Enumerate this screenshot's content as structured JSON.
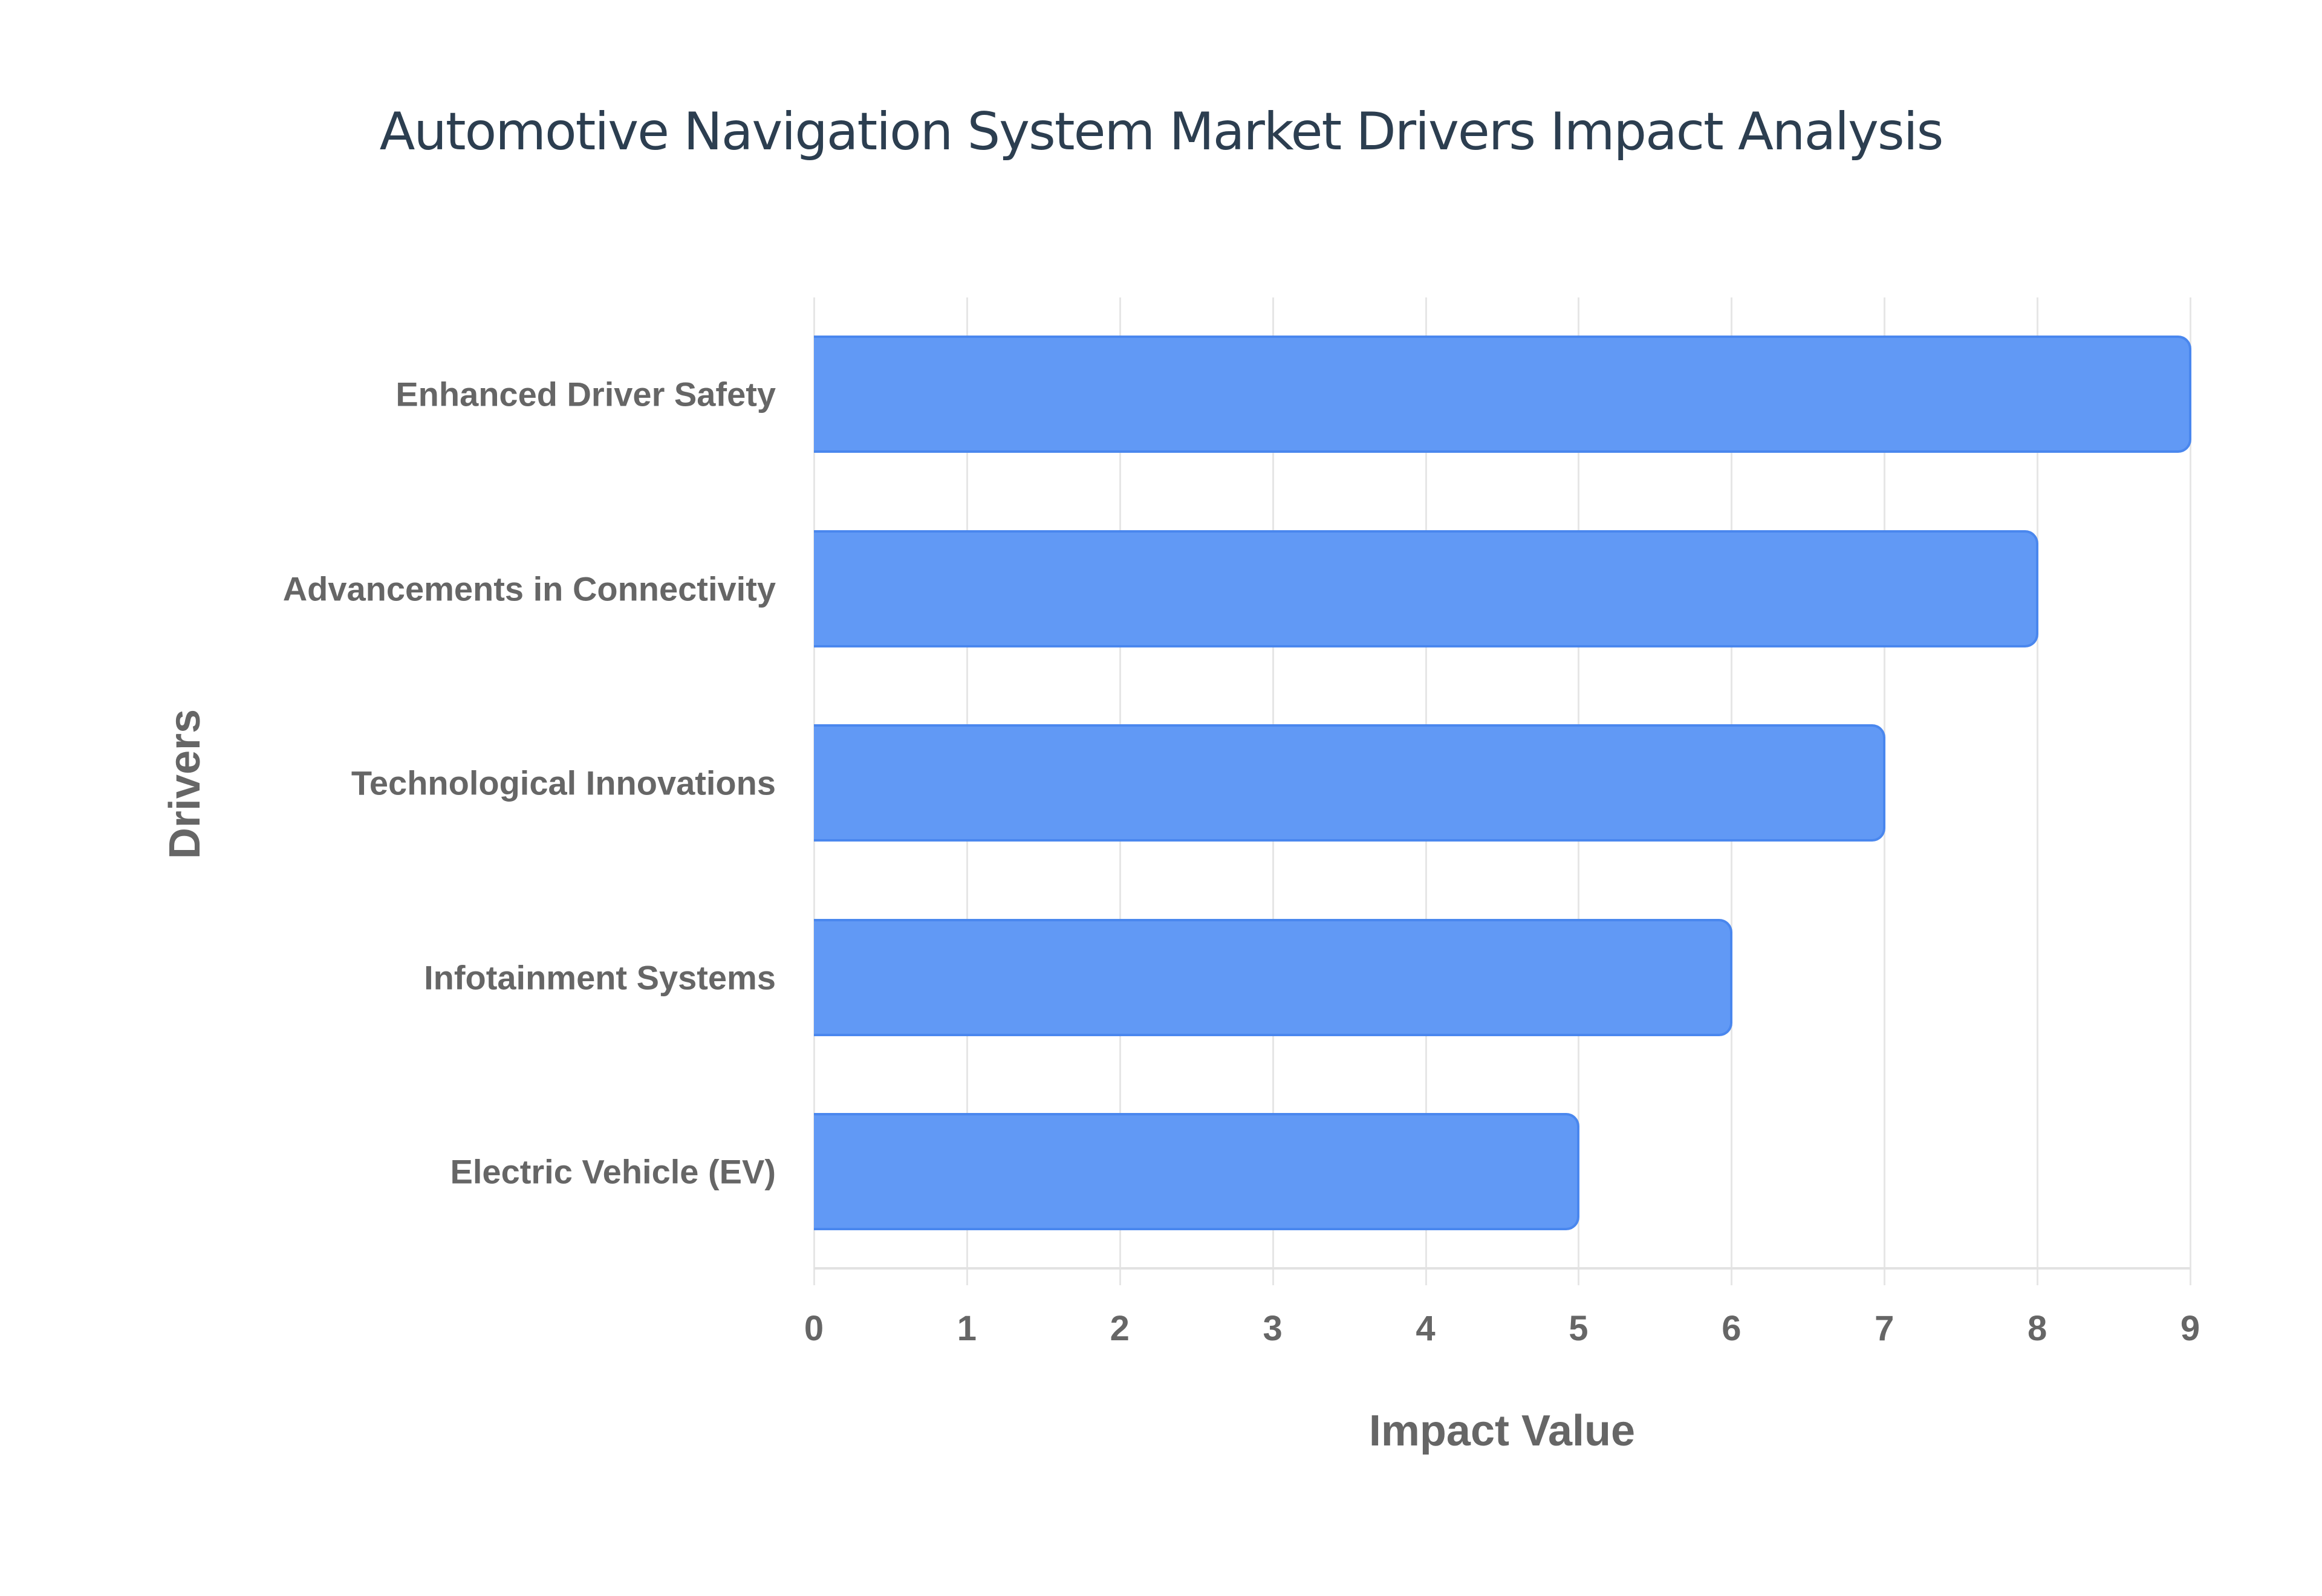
{
  "title": "Automotive Navigation System Market Drivers Impact Analysis",
  "colors": {
    "bar_fill": "#6199f5",
    "bar_border": "#4a87ee",
    "title": "#2c3e50",
    "labels": "#666666",
    "grid": "#e6e6e6"
  },
  "axes": {
    "x_title": "Impact Value",
    "y_title": "Drivers",
    "x_ticks": [
      "0",
      "1",
      "2",
      "3",
      "4",
      "5",
      "6",
      "7",
      "8",
      "9"
    ]
  },
  "categories": [
    "Enhanced Driver Safety",
    "Advancements in Connectivity",
    "Technological Innovations",
    "Infotainment Systems",
    "Electric Vehicle (EV)"
  ],
  "chart_data": {
    "type": "bar",
    "orientation": "horizontal",
    "title": "Automotive Navigation System Market Drivers Impact Analysis",
    "xlabel": "Impact Value",
    "ylabel": "Drivers",
    "categories": [
      "Enhanced Driver Safety",
      "Advancements in Connectivity",
      "Technological Innovations",
      "Infotainment Systems",
      "Electric Vehicle (EV)"
    ],
    "values": [
      9,
      8,
      7,
      6,
      5
    ],
    "xlim": [
      0,
      9
    ],
    "x_ticks": [
      0,
      1,
      2,
      3,
      4,
      5,
      6,
      7,
      8,
      9
    ],
    "grid": true,
    "legend": null
  }
}
